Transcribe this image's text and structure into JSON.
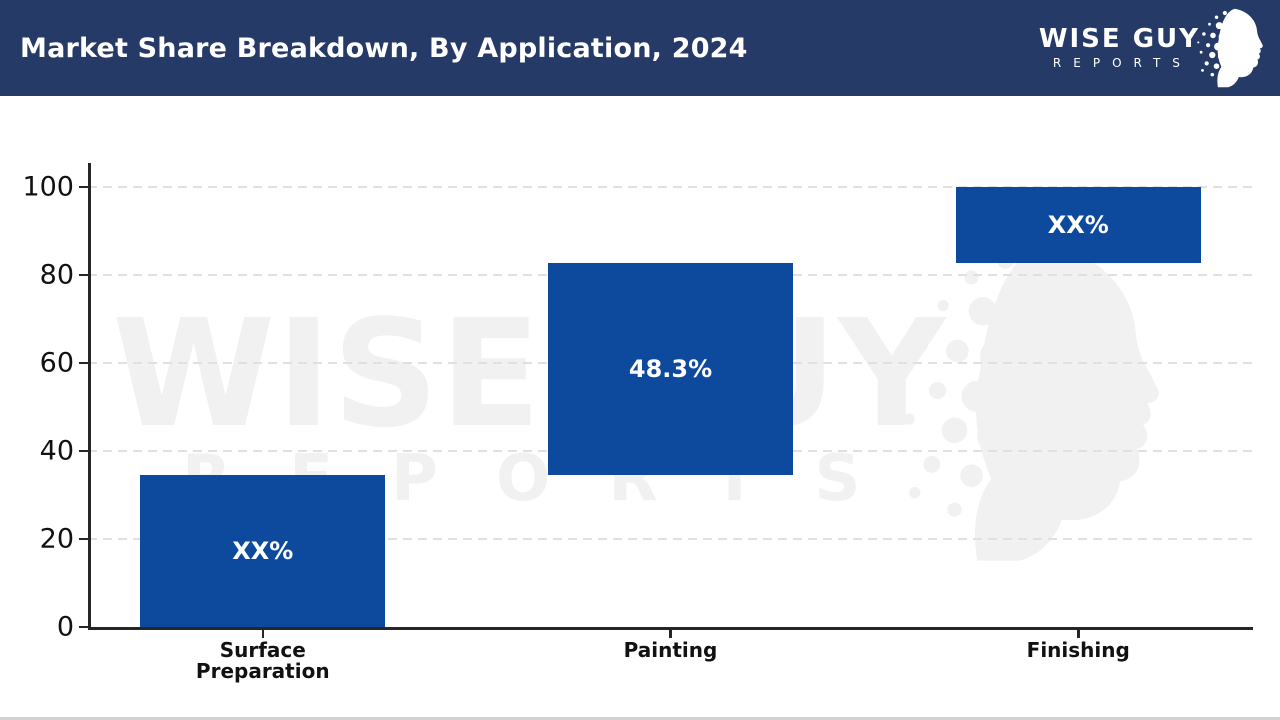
{
  "header": {
    "title": "Market Share Breakdown, By Application, 2024",
    "logo": {
      "name": "WISE GUY",
      "subtext": "REPORTS"
    }
  },
  "watermark": {
    "line1": "WISE GUY",
    "line2": "REPORTS"
  },
  "chart_data": {
    "type": "bar",
    "subtype": "floating-waterfall",
    "title": "Market Share Breakdown, By Application, 2024",
    "categories": [
      "Surface Preparation",
      "Painting",
      "Finishing"
    ],
    "bars": [
      {
        "category": "Surface Preparation",
        "label_lines": [
          "Surface",
          "Preparation"
        ],
        "start": 0,
        "end": 34.5,
        "value": 34.5,
        "value_label": "XX%"
      },
      {
        "category": "Painting",
        "label_lines": [
          "Painting"
        ],
        "start": 34.5,
        "end": 82.8,
        "value": 48.3,
        "value_label": "48.3%"
      },
      {
        "category": "Finishing",
        "label_lines": [
          "Finishing"
        ],
        "start": 82.8,
        "end": 100,
        "value": 17.2,
        "value_label": "XX%"
      }
    ],
    "yticks": [
      0,
      20,
      40,
      60,
      80,
      100
    ],
    "ylim": [
      0,
      105.5
    ],
    "xlabel": "",
    "ylabel": "",
    "grid": "dashed-horizontal",
    "legend": false,
    "bar_color": "#0d4a9e"
  },
  "colors": {
    "header_bg": "#253a66",
    "bar": "#0d4a9e",
    "axis": "#262626",
    "grid": "#e0e0e0",
    "tick_text": "#111111",
    "watermark": "#f1f1f1",
    "footer_line": "#d2d2d2"
  }
}
